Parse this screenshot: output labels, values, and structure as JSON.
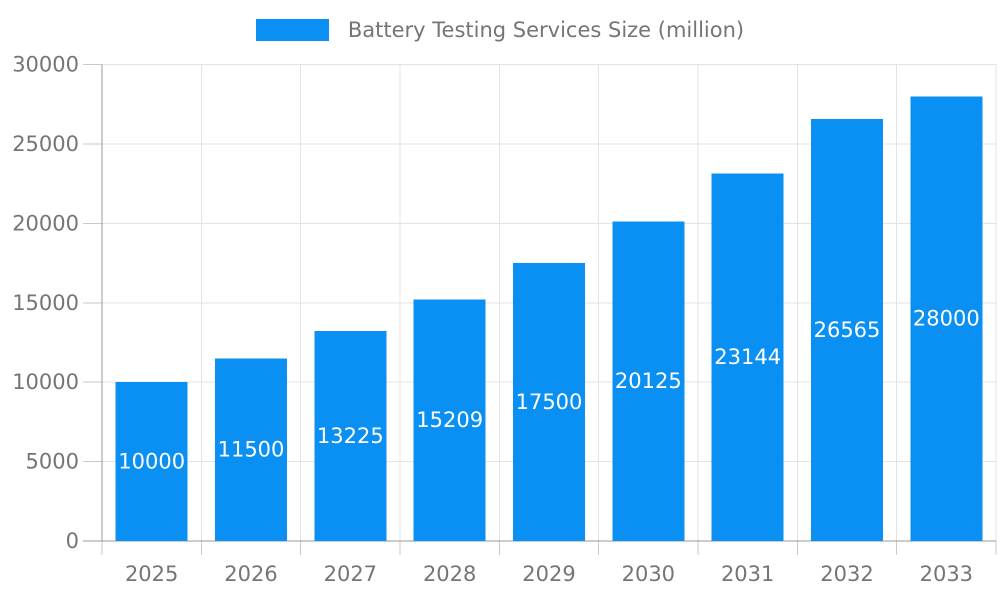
{
  "legend": {
    "label": "Battery Testing Services Size (million)"
  },
  "colors": {
    "bar": "#0a8ff2",
    "axis_line": "#999999",
    "tick": "#c9c9c9",
    "grid": "#e3e3e3",
    "axis_text": "#757575",
    "value_label_text": "#ffffff",
    "background": "#ffffff"
  },
  "chart_data": {
    "type": "bar",
    "title": "Battery Testing Services Size (million)",
    "categories": [
      "2025",
      "2026",
      "2027",
      "2028",
      "2029",
      "2030",
      "2031",
      "2032",
      "2033"
    ],
    "values": [
      10000,
      11500,
      13225,
      15209,
      17500,
      20125,
      23144,
      26565,
      28000
    ],
    "xlabel": "",
    "ylabel": "",
    "ylim": [
      0,
      30000
    ],
    "y_ticks": [
      0,
      5000,
      10000,
      15000,
      20000,
      25000,
      30000
    ],
    "grid": true,
    "legend_position": "top",
    "bar_value_labels": true
  }
}
